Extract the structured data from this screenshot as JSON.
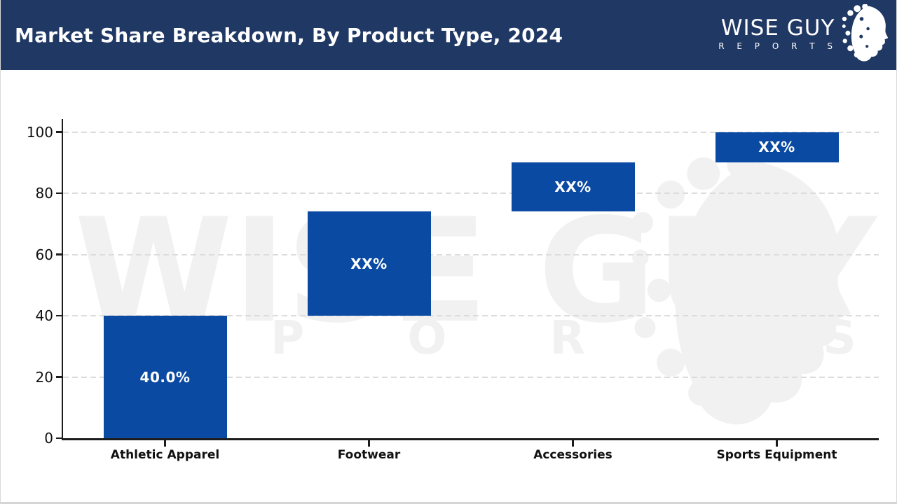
{
  "header": {
    "title": "Market Share Breakdown, By Product Type, 2024",
    "bg_color": "#203864",
    "logo": {
      "primary": "WISE GUY",
      "secondary": "R E P O R T S",
      "icon": "face-profile-dots-icon"
    }
  },
  "watermark": {
    "primary": "WISE GUY",
    "secondary": "P O R T S",
    "color": "#f1f1f1",
    "icon": "face-profile-dots-watermark"
  },
  "chart_data": {
    "type": "bar",
    "subtype": "waterfall",
    "title": "Market Share Breakdown, By Product Type, 2024",
    "categories": [
      "Athletic Apparel",
      "Footwear",
      "Accessories",
      "Sports Equipment"
    ],
    "segments": [
      {
        "category": "Athletic Apparel",
        "start": 0,
        "end": 40,
        "value": 40,
        "label": "40.0%"
      },
      {
        "category": "Footwear",
        "start": 40,
        "end": 74,
        "value": 34,
        "label": "XX%"
      },
      {
        "category": "Accessories",
        "start": 74,
        "end": 90,
        "value": 16,
        "label": "XX%"
      },
      {
        "category": "Sports Equipment",
        "start": 90,
        "end": 100,
        "value": 10,
        "label": "XX%"
      }
    ],
    "yticks": [
      0,
      20,
      40,
      60,
      80,
      100
    ],
    "ylim": [
      0,
      105
    ],
    "xlabel": "",
    "ylabel": "",
    "bar_color": "#0b4aa2",
    "grid": "horizontal-dashed",
    "legend": "none"
  }
}
